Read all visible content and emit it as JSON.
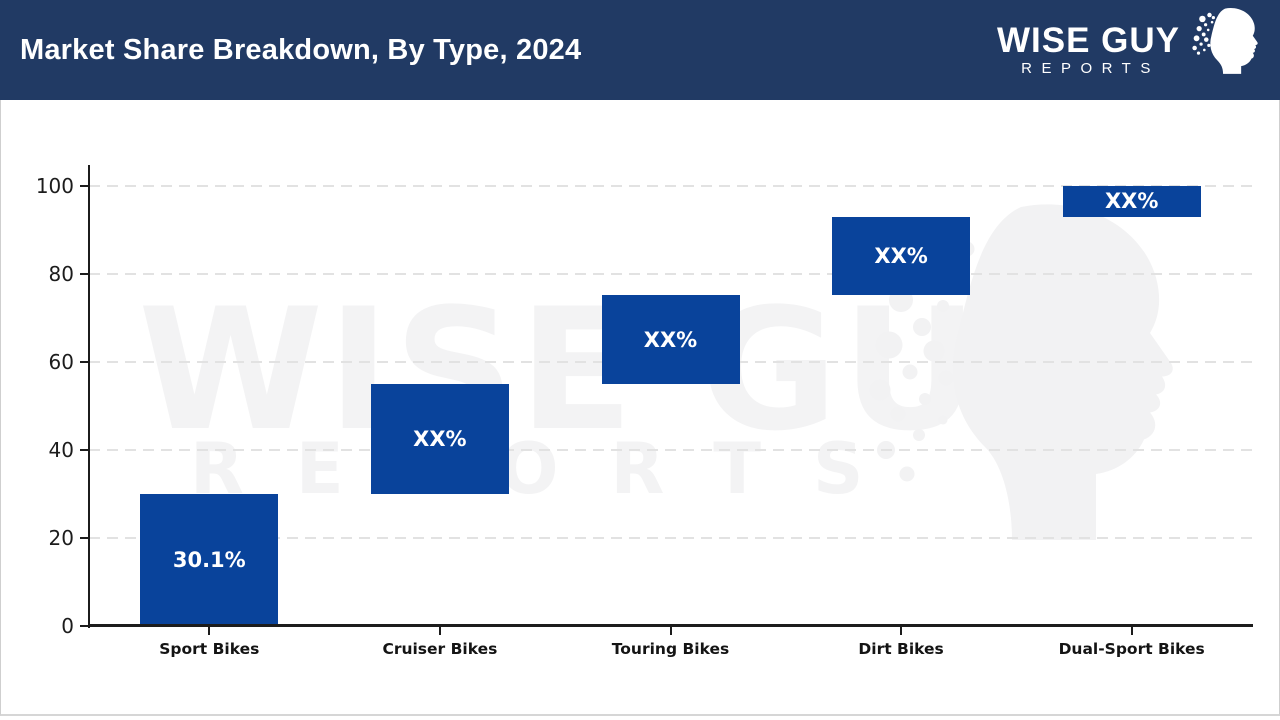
{
  "header": {
    "title": "Market Share Breakdown, By Type, 2024",
    "bg_color": "#213a64",
    "logo": {
      "line1": "WISE GUY",
      "line2": "REPORTS"
    }
  },
  "watermark": {
    "line1": "WISE GUY",
    "line2": "REPORTS"
  },
  "chart_data": {
    "type": "bar",
    "subtype": "waterfall",
    "title": "Market Share Breakdown, By Type, 2024",
    "categories": [
      "Sport Bikes",
      "Cruiser Bikes",
      "Touring Bikes",
      "Dirt Bikes",
      "Dual-Sport Bikes"
    ],
    "segments": [
      {
        "category": "Sport Bikes",
        "start": 0,
        "end": 30.1,
        "label": "30.1%"
      },
      {
        "category": "Cruiser Bikes",
        "start": 30.1,
        "end": 55.0,
        "label": "XX%"
      },
      {
        "category": "Touring Bikes",
        "start": 55.0,
        "end": 75.2,
        "label": "XX%"
      },
      {
        "category": "Dirt Bikes",
        "start": 75.2,
        "end": 93.0,
        "label": "XX%"
      },
      {
        "category": "Dual-Sport Bikes",
        "start": 93.0,
        "end": 100.0,
        "label": "XX%"
      }
    ],
    "xlabel": "",
    "ylabel": "",
    "ylim": [
      0,
      100
    ],
    "yticks": [
      0,
      20,
      40,
      60,
      80,
      100
    ],
    "grid": "horizontal dashed",
    "legend": "none",
    "bar_color": "#09439b",
    "bar_label_color": "#ffffff"
  }
}
